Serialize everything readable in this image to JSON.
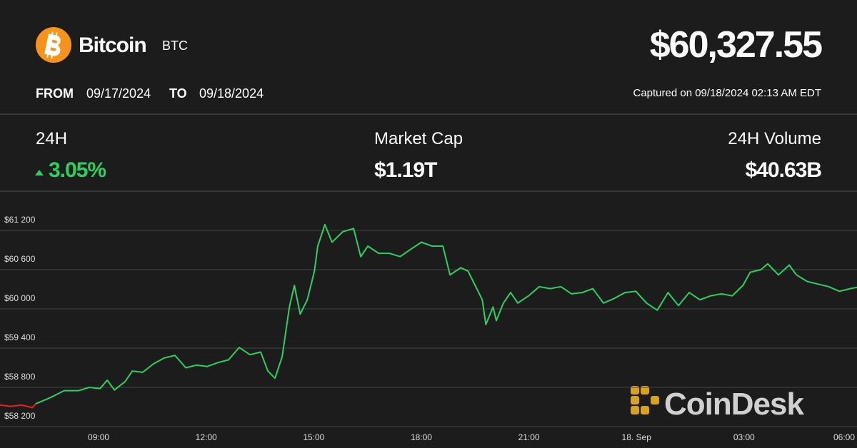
{
  "header": {
    "name": "Bitcoin",
    "symbol": "BTC",
    "price": "$60,327.55",
    "from_label": "FROM",
    "from": "09/17/2024",
    "to_label": "TO",
    "to": "09/18/2024",
    "captured": "Captured on 09/18/2024 02:13 AM EDT"
  },
  "stats": [
    {
      "label": "24H",
      "value": "3.05%"
    },
    {
      "label": "Market Cap",
      "value": "$1.19T"
    },
    {
      "label": "24H Volume",
      "value": "$40.63B"
    }
  ],
  "watermark": "CoinDesk",
  "chart_data": {
    "type": "line",
    "xlim": [
      6.25,
      30.15
    ],
    "xticks": [
      {
        "value": 9,
        "label": "09:00"
      },
      {
        "value": 12,
        "label": "12:00"
      },
      {
        "value": 15,
        "label": "15:00"
      },
      {
        "value": 18,
        "label": "18:00"
      },
      {
        "value": 21,
        "label": "21:00"
      },
      {
        "value": 24,
        "label": "18. Sep"
      },
      {
        "value": 27,
        "label": "03:00"
      },
      {
        "value": 30,
        "label": "06:00"
      }
    ],
    "ylim": [
      58200,
      61800
    ],
    "yticks": [
      {
        "value": 58200,
        "label": "$58 200"
      },
      {
        "value": 58800,
        "label": "$58 800"
      },
      {
        "value": 59400,
        "label": "$59 400"
      },
      {
        "value": 60000,
        "label": "$60 000"
      },
      {
        "value": 60600,
        "label": "$60 600"
      },
      {
        "value": 61200,
        "label": "$61 200"
      }
    ],
    "grid": true,
    "series": [
      {
        "color": "#e0261b",
        "x": [
          6.25,
          6.55,
          6.85,
          7.15,
          7.25
        ],
        "values": [
          58530,
          58510,
          58530,
          58490,
          58550
        ]
      },
      {
        "color": "#2bd15f",
        "x": [
          7.25,
          7.64,
          8.04,
          8.44,
          8.74,
          9.04,
          9.24,
          9.44,
          9.74,
          9.94,
          10.23,
          10.53,
          10.83,
          11.13,
          11.43,
          11.73,
          12.03,
          12.33,
          12.62,
          12.92,
          13.22,
          13.52,
          13.72,
          13.92,
          14.12,
          14.32,
          14.46,
          14.62,
          14.82,
          15.02,
          15.11,
          15.31,
          15.51,
          15.81,
          16.11,
          16.31,
          16.51,
          16.81,
          17.11,
          17.41,
          17.7,
          18.0,
          18.3,
          18.6,
          18.8,
          19.1,
          19.3,
          19.5,
          19.7,
          19.8,
          20.0,
          20.09,
          20.29,
          20.49,
          20.69,
          20.99,
          21.29,
          21.59,
          21.89,
          22.19,
          22.49,
          22.78,
          23.08,
          23.38,
          23.68,
          23.98,
          24.28,
          24.58,
          24.88,
          25.17,
          25.47,
          25.77,
          26.07,
          26.37,
          26.67,
          26.97,
          27.17,
          27.47,
          27.66,
          27.96,
          28.26,
          28.46,
          28.76,
          29.06,
          29.36,
          29.66,
          29.96,
          30.15
        ],
        "values": [
          58550,
          58640,
          58750,
          58750,
          58800,
          58780,
          58910,
          58760,
          58890,
          59050,
          59030,
          59160,
          59250,
          59290,
          59100,
          59140,
          59120,
          59180,
          59220,
          59410,
          59300,
          59340,
          59050,
          58940,
          59270,
          60030,
          60360,
          59920,
          60140,
          60580,
          60960,
          61290,
          61020,
          61180,
          61230,
          60800,
          60960,
          60850,
          60850,
          60800,
          60910,
          61020,
          60960,
          60960,
          60520,
          60630,
          60580,
          60360,
          60140,
          59760,
          60030,
          59820,
          60090,
          60250,
          60090,
          60200,
          60340,
          60310,
          60340,
          60230,
          60250,
          60310,
          60090,
          60160,
          60250,
          60270,
          60090,
          59980,
          60250,
          60050,
          60250,
          60140,
          60200,
          60230,
          60200,
          60360,
          60560,
          60600,
          60690,
          60520,
          60670,
          60520,
          60420,
          60380,
          60340,
          60270,
          60310,
          60330
        ]
      }
    ]
  }
}
